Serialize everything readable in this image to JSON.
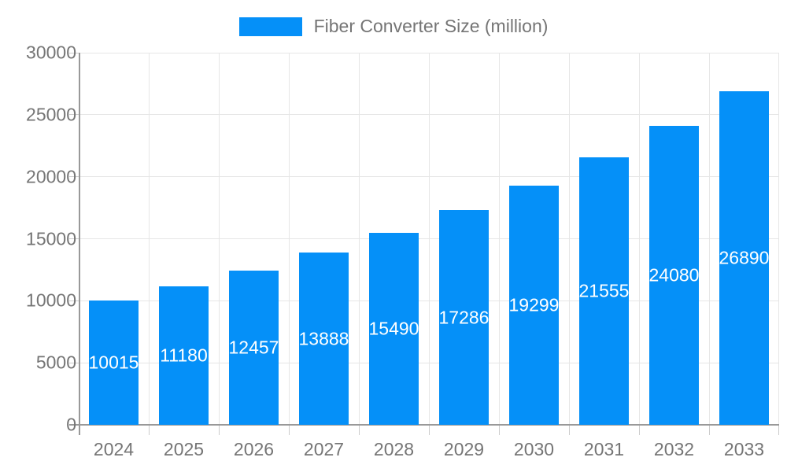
{
  "legend": {
    "label": "Fiber Converter Size (million)"
  },
  "chart_data": {
    "type": "bar",
    "title": "Fiber Converter Size (million)",
    "categories": [
      "2024",
      "2025",
      "2026",
      "2027",
      "2028",
      "2029",
      "2030",
      "2031",
      "2032",
      "2033"
    ],
    "values": [
      10015,
      11180,
      12457,
      13888,
      15490,
      17286,
      19299,
      21555,
      24080,
      26890
    ],
    "xlabel": "",
    "ylabel": "",
    "ylim": [
      0,
      30000
    ],
    "yticks": [
      0,
      5000,
      10000,
      15000,
      20000,
      25000,
      30000
    ],
    "grid": true,
    "legend_position": "top-center",
    "value_labels": "inside-center",
    "colors": {
      "bar": "#0590F8",
      "value_label": "#FFFFFF",
      "axis_text": "#757575",
      "gridline": "#E6E6E6",
      "axis_line": "#999999",
      "tick": "#CCCCCC",
      "background": "#FFFFFF"
    }
  }
}
